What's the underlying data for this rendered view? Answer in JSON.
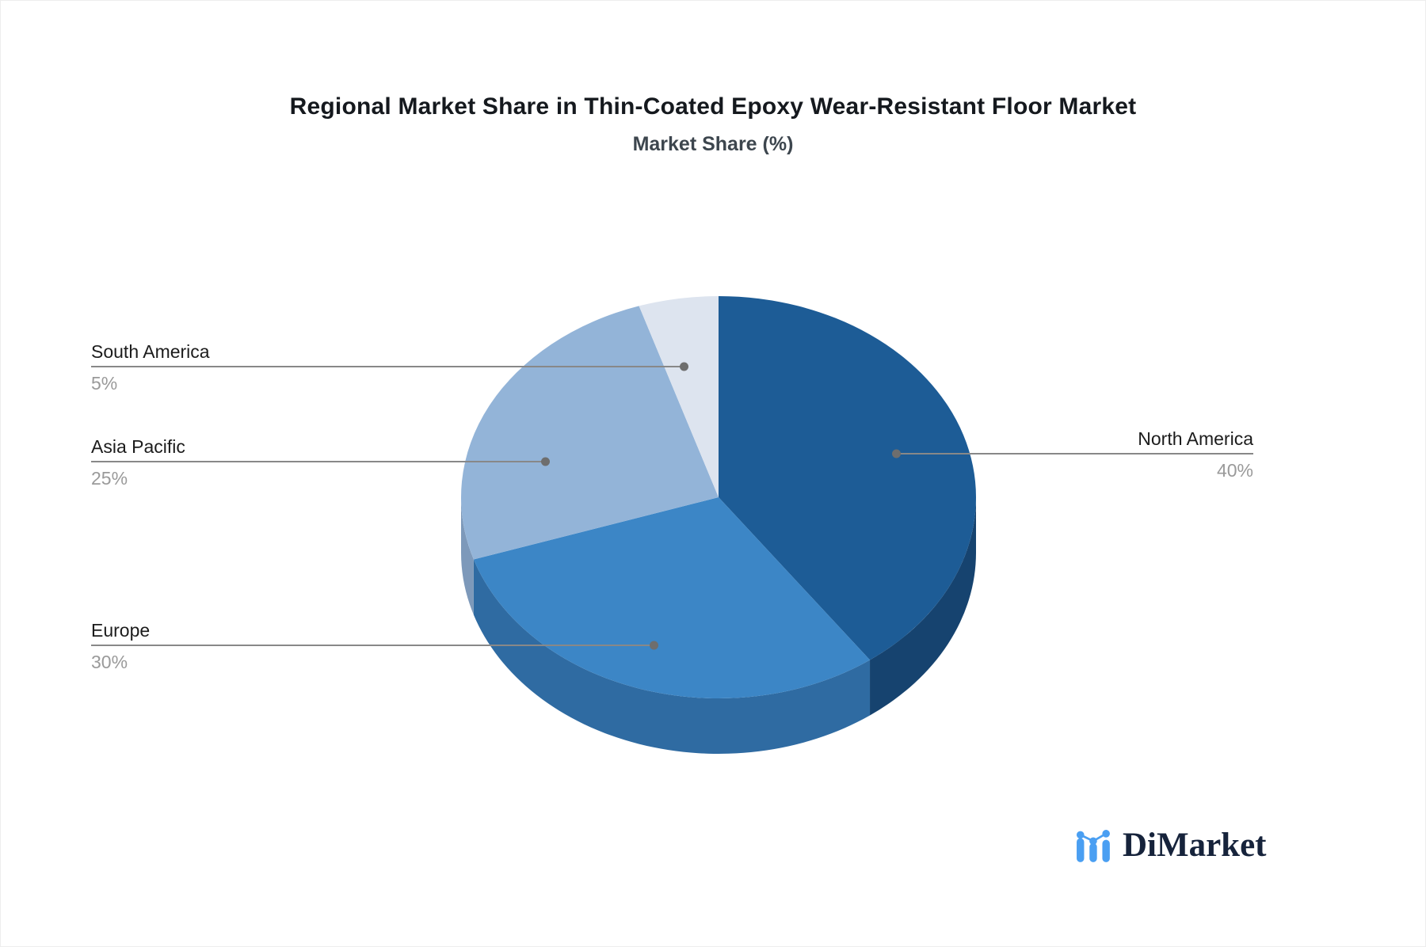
{
  "chart_data": {
    "type": "pie",
    "title": "Regional Market Share in Thin-Coated Epoxy Wear-Resistant Floor Market",
    "subtitle": "Market Share (%)",
    "unit": "%",
    "style": "3d-pie",
    "start_angle_deg": 0,
    "direction": "clockwise",
    "legend_position": "callout-labels",
    "slices": [
      {
        "label": "North America",
        "value": 40,
        "display": "40%",
        "color": "#1D5C96",
        "side_color": "#16436F"
      },
      {
        "label": "Europe",
        "value": 30,
        "display": "30%",
        "color": "#3C86C6",
        "side_color": "#2F6BA2"
      },
      {
        "label": "Asia Pacific",
        "value": 25,
        "display": "25%",
        "color": "#93B4D8",
        "side_color": "#7D99BA"
      },
      {
        "label": "South America",
        "value": 5,
        "display": "5%",
        "color": "#DDE4EF",
        "side_color": "#C3CEDD"
      }
    ],
    "leader_line_color": "#888888",
    "leader_dot_color": "#6E6E6E",
    "label_color": "#1C1C1C",
    "value_color": "#9A9A9A"
  },
  "brand": {
    "name": "DiMarket",
    "icon": "bar-line-chart-logo",
    "icon_color": "#4A9FF2",
    "text_color": "#16233B"
  }
}
